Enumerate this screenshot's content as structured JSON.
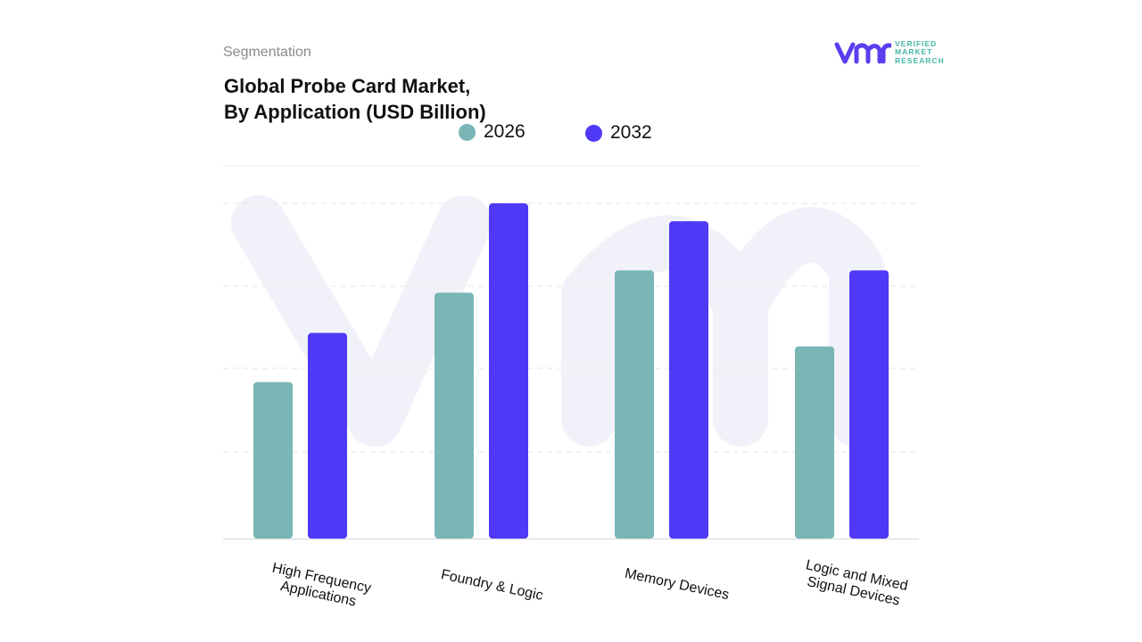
{
  "header": {
    "segment_label": "Segmentation",
    "title_line1": "Global Probe Card Market,",
    "title_line2": "By Application (USD Billion)"
  },
  "logo": {
    "line1": "VERIFIED",
    "line2": "MARKET",
    "line3": "RESEARCH",
    "color": "#5b3ef0",
    "text_color": "#44b6a8"
  },
  "chart_data": {
    "type": "bar",
    "categories": [
      {
        "line1": "High Frequency",
        "line2": "Applications"
      },
      {
        "line1": "Foundry & Logic",
        "line2": ""
      },
      {
        "line1": "Memory Devices",
        "line2": ""
      },
      {
        "line1": "Logic and Mixed",
        "line2": "Signal Devices"
      }
    ],
    "series": [
      {
        "name": "2026",
        "color": "#7ab6b6",
        "values": [
          1.75,
          2.75,
          3.0,
          2.15
        ]
      },
      {
        "name": "2032",
        "color": "#4f39f6",
        "values": [
          2.3,
          3.75,
          3.55,
          3.0
        ]
      }
    ],
    "ylim": [
      0,
      4.2
    ],
    "grid": true,
    "legend_position": "top"
  }
}
